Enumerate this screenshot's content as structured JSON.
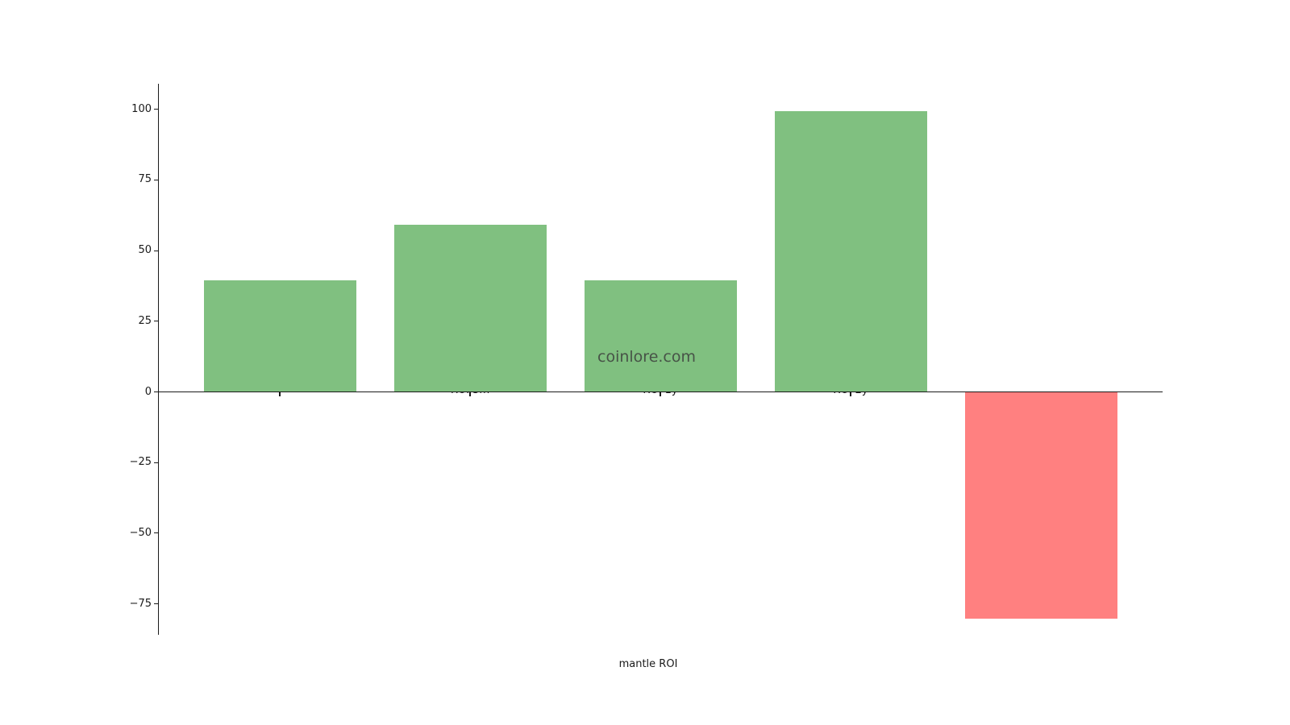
{
  "page": {
    "background": "#ffffff",
    "watermark": "coinlore.com"
  },
  "chart_data": {
    "type": "bar",
    "title": "",
    "xlabel": "mantle ROI",
    "ylabel": "",
    "categories": [
      "",
      "ROI 3m",
      "ROI 1y",
      "ROI 2y",
      ""
    ],
    "values": [
      39.5,
      59.2,
      39.5,
      99.3,
      -80.2
    ],
    "bar_colors": [
      "#80c080",
      "#80c080",
      "#80c080",
      "#80c080",
      "#ff8080"
    ],
    "positive_color": "#80c080",
    "negative_color": "#ff8080",
    "yticks": [
      "100",
      "75",
      "50",
      "25",
      "0",
      "−25",
      "−50",
      "−75"
    ],
    "ytick_values": [
      100,
      75,
      50,
      25,
      0,
      -25,
      -50,
      -75
    ],
    "ylim": [
      -89,
      109
    ],
    "grid": false,
    "legend_position": "none",
    "axis_color": "#1a1a1a",
    "watermark": "coinlore.com"
  }
}
